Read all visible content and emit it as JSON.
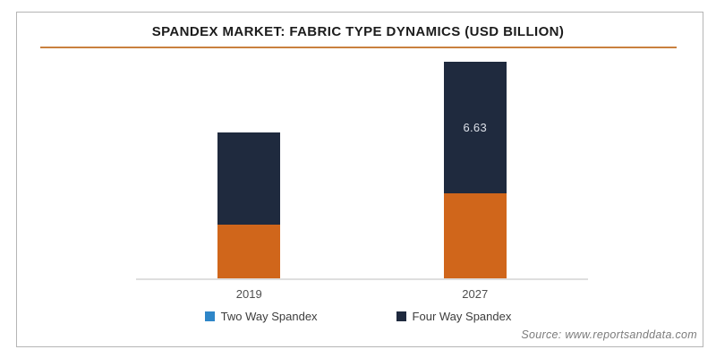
{
  "title": "SPANDEX MARKET: FABRIC TYPE DYNAMICS (USD BILLION)",
  "source": "Source: www.reportsanddata.com",
  "colors": {
    "title_text": "#1c1c1c",
    "title_rule": "#c9803f",
    "frame_border": "#b5b5b5",
    "axis_line": "#dedede",
    "tick_label": "#4f4f4f",
    "legend_text": "#3d3d3d",
    "source_text": "#7c7c7c",
    "data_label": "#dce0e8",
    "two_way_bar": "#d0661b",
    "two_way_legend_swatch": "#2e86c8",
    "four_way_bar": "#1f2a3e"
  },
  "chart_data": {
    "type": "bar",
    "stacked": true,
    "title": "SPANDEX MARKET: FABRIC TYPE DYNAMICS (USD BILLION)",
    "xlabel": "",
    "ylabel": "",
    "categories": [
      "2019",
      "2027"
    ],
    "series": [
      {
        "name": "Two Way Spandex",
        "bar_color": "#d0661b",
        "legend_color": "#2e86c8",
        "values": [
          2.72,
          4.31
        ],
        "labels": [
          "",
          ""
        ]
      },
      {
        "name": "Four Way Spandex",
        "bar_color": "#1f2a3e",
        "legend_color": "#1f2a3e",
        "values": [
          4.68,
          6.63
        ],
        "labels": [
          "",
          "6.63"
        ]
      }
    ],
    "ylim": [
      0,
      11
    ],
    "grid": false,
    "axis_ticks_shown": false,
    "legend_position": "bottom",
    "note": "Only the 6.63 data label is displayed on the chart; other values are estimated from bar heights."
  }
}
